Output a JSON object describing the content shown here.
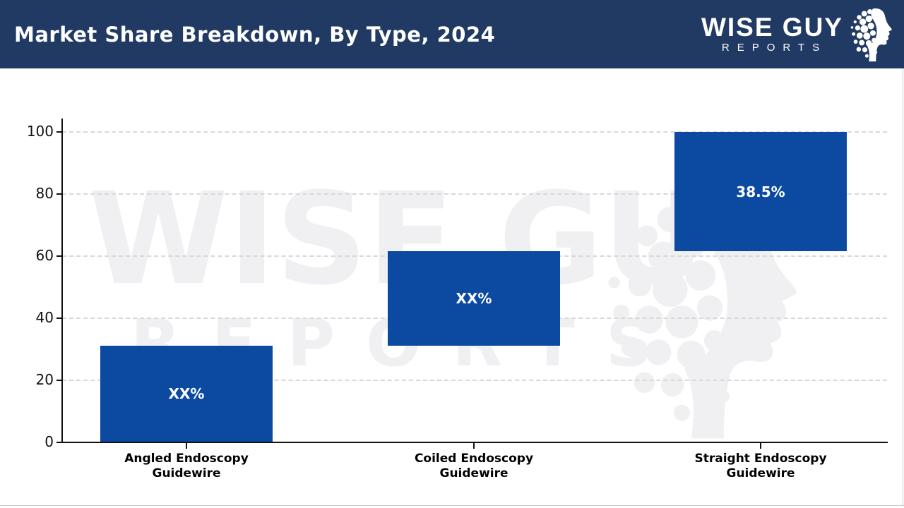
{
  "header": {
    "title": "Market Share Breakdown, By Type, 2024",
    "logo": {
      "line1": "WISE GUY",
      "line2": "REPORTS"
    },
    "background": "#213a64"
  },
  "watermark": {
    "line1": "WISE GUY",
    "line2": "REPORTS"
  },
  "colors": {
    "header_bg": "#213a64",
    "bar": "#0b4aa0",
    "bar_label": "#ffffff",
    "gridline": "#d8d8d8",
    "axis": "#111111",
    "watermark": "#f0f0f2"
  },
  "chart_data": {
    "type": "bar",
    "subtype": "waterfall",
    "title": "Market Share Breakdown, By Type, 2024",
    "categories_full": [
      "Angled Endoscopy Guidewire",
      "Coiled Endoscopy Guidewire",
      "Straight Endoscopy Guidewire"
    ],
    "categories": [
      [
        "Angled Endoscopy",
        "Guidewire"
      ],
      [
        "Coiled Endoscopy",
        "Guidewire"
      ],
      [
        "Straight Endoscopy",
        "Guidewire"
      ]
    ],
    "series": [
      {
        "name": "Market Share (%)",
        "values": [
          31,
          30.5,
          38.5
        ]
      }
    ],
    "segments": [
      {
        "category": "Angled Endoscopy Guidewire",
        "start": 0,
        "end": 31,
        "label": "XX%"
      },
      {
        "category": "Coiled Endoscopy Guidewire",
        "start": 31,
        "end": 61.5,
        "label": "XX%"
      },
      {
        "category": "Straight Endoscopy Guidewire",
        "start": 61.5,
        "end": 100,
        "label": "38.5%"
      }
    ],
    "bar_labels": [
      "XX%",
      "XX%",
      "38.5%"
    ],
    "yticks": [
      0,
      20,
      40,
      60,
      80,
      100
    ],
    "ylim": [
      0,
      104
    ],
    "xlabel": "",
    "ylabel": "",
    "grid": "horizontal-dashed",
    "legend": "none",
    "bar_color": "#0b4aa0"
  }
}
